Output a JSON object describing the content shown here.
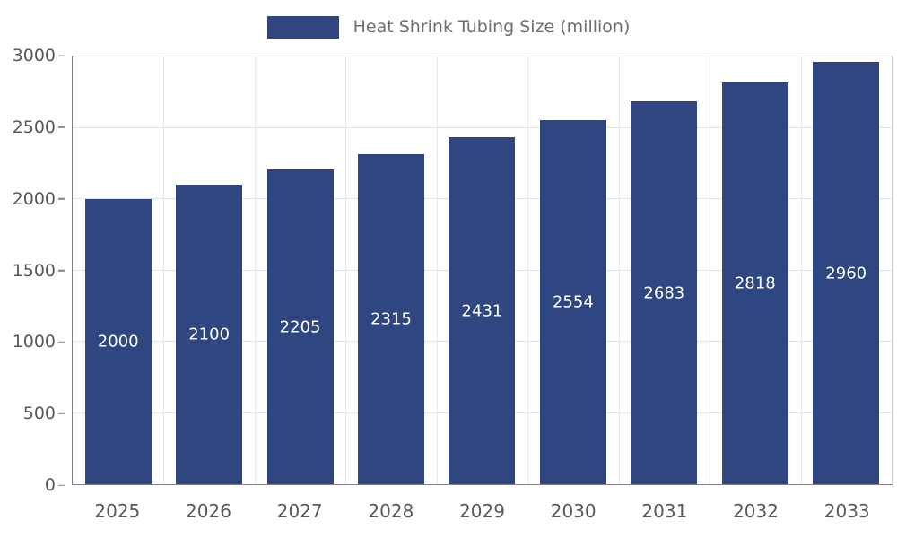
{
  "chart_data": {
    "type": "bar",
    "title": "Heat Shrink Tubing Size (million)",
    "categories": [
      "2025",
      "2026",
      "2027",
      "2028",
      "2029",
      "2030",
      "2031",
      "2032",
      "2033"
    ],
    "values": [
      2000,
      2100,
      2205,
      2315,
      2431,
      2554,
      2683,
      2818,
      2960
    ],
    "xlabel": "",
    "ylabel": "",
    "ylim": [
      0,
      3000
    ],
    "yticks": [
      0,
      500,
      1000,
      1500,
      2000,
      2500,
      3000
    ],
    "grid": true,
    "legend_position": "top",
    "bar_color": "#2f4680",
    "value_label_color": "#ffffff"
  }
}
